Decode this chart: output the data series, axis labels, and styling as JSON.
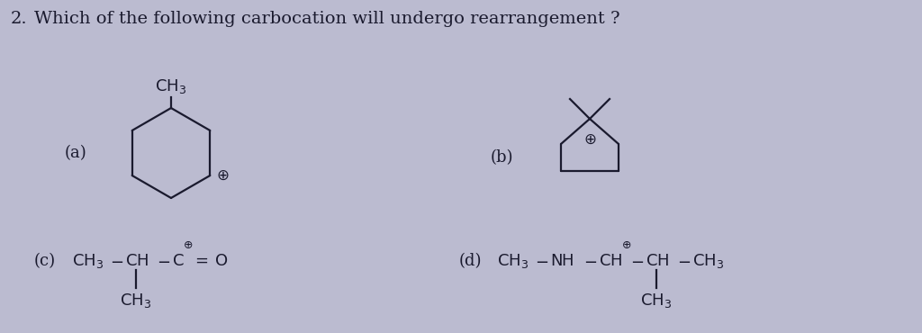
{
  "title": "2.  Which of the following carbocation will undergo rearrangement ?",
  "background_color": "#bbbbd0",
  "text_color": "#1a1a2e",
  "label_a": "(a)",
  "label_b": "(b)",
  "label_c": "(c)",
  "label_d": "(d)",
  "font_size_title": 14,
  "font_size_label": 13,
  "font_size_chem": 13
}
